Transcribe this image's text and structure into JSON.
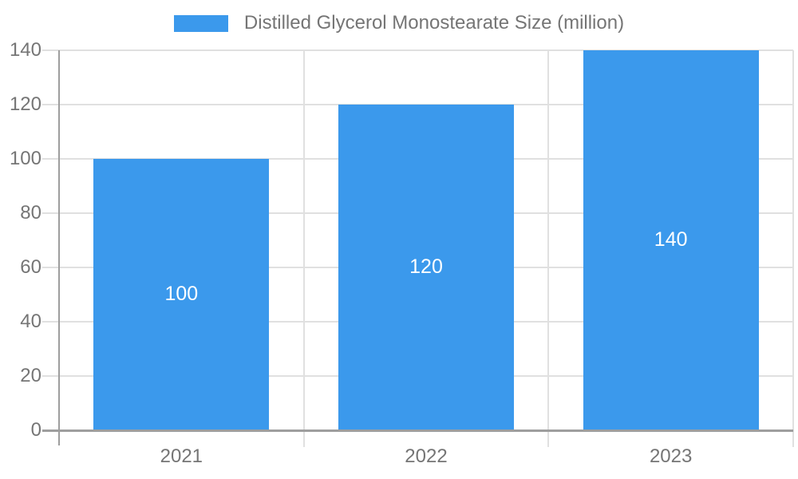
{
  "chart_data": {
    "type": "bar",
    "title": "Distilled Glycerol Monostearate Size (million)",
    "legend": {
      "label": "Distilled Glycerol Monostearate Size (million)",
      "position": "top-center"
    },
    "categories": [
      "2021",
      "2022",
      "2023"
    ],
    "series": [
      {
        "name": "Distilled Glycerol Monostearate Size (million)",
        "values": [
          100,
          120,
          140
        ]
      }
    ],
    "data_labels": [
      "100",
      "120",
      "140"
    ],
    "xlabel": "",
    "ylabel": "",
    "ylim": [
      0,
      140
    ],
    "yticks": [
      0,
      20,
      40,
      60,
      80,
      100,
      120,
      140
    ],
    "grid": true,
    "colors": {
      "bar": "#3B99EC",
      "gridline": "#E0E0E0",
      "axis_line": "#9E9E9E",
      "axis_text": "#757575",
      "bar_label_text": "#FFFFFF",
      "background": "#FFFFFF"
    }
  }
}
